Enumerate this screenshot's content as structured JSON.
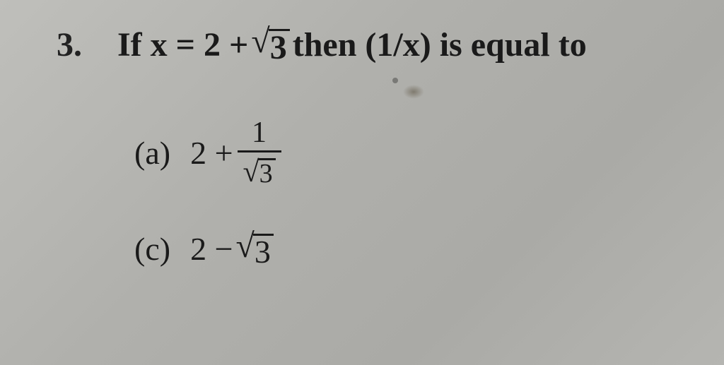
{
  "question": {
    "number": "3.",
    "prefix": "If x = 2 + ",
    "sqrt_radicand_q": "3",
    "suffix": " then (1/x) is equal to"
  },
  "options": {
    "a": {
      "label": "(a)",
      "leading": "2 + ",
      "frac_num": "1",
      "frac_den_radicand": "3"
    },
    "c": {
      "label": "(c)",
      "leading": "2 − ",
      "sqrt_radicand": "3"
    }
  },
  "style": {
    "text_color": "#1a1a1a",
    "bg_color": "#b8b8b4",
    "question_fontsize": 48,
    "option_fontsize": 46
  }
}
